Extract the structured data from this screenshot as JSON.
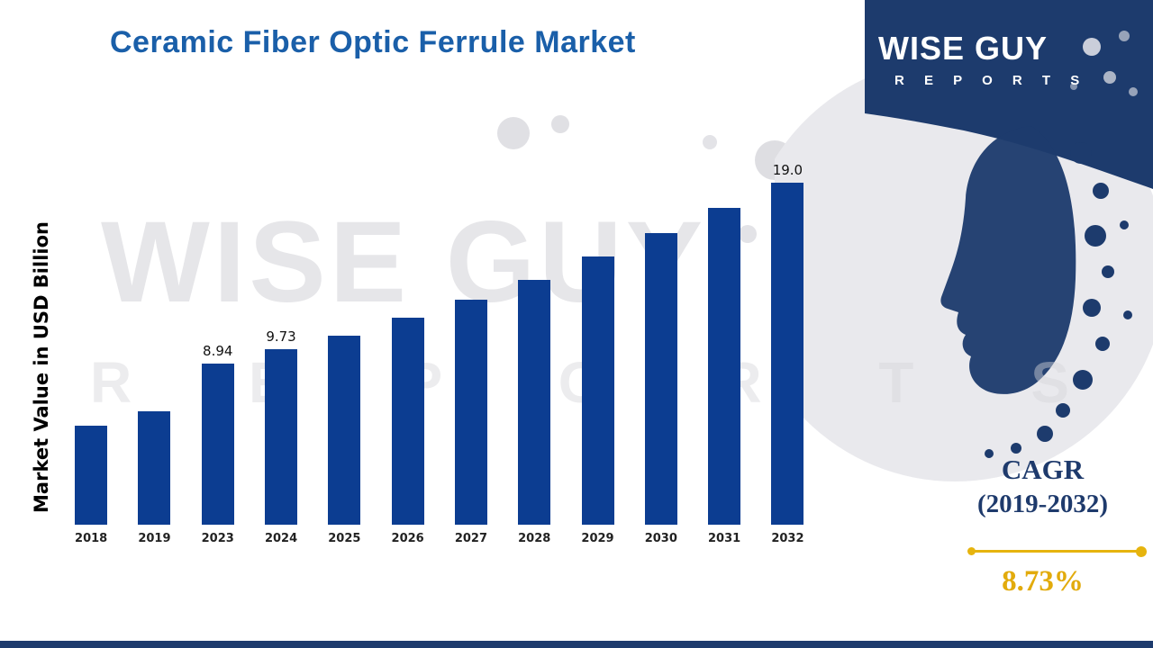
{
  "page": {
    "title": "Ceramic Fiber Optic Ferrule Market"
  },
  "logo": {
    "name_top": "WISE GUY",
    "name_bottom": "R E P O R T S"
  },
  "watermark": {
    "top": "WISE GUY",
    "bottom": "R E P O R T S"
  },
  "cagr": {
    "heading": "CAGR",
    "range": "(2019-2032)",
    "value": "8.73%"
  },
  "chart_data": {
    "type": "bar",
    "title": "Ceramic Fiber Optic Ferrule Market",
    "ylabel": "Market Value in USD Billion",
    "xlabel": "",
    "categories": [
      "2018",
      "2019",
      "2023",
      "2024",
      "2025",
      "2026",
      "2027",
      "2028",
      "2029",
      "2030",
      "2031",
      "2032"
    ],
    "values": [
      5.5,
      6.3,
      8.94,
      9.73,
      10.5,
      11.5,
      12.5,
      13.6,
      14.9,
      16.2,
      17.6,
      19.0
    ],
    "data_labels": [
      null,
      null,
      "8.94",
      "9.73",
      null,
      null,
      null,
      null,
      null,
      null,
      null,
      "19.0"
    ],
    "ylim": [
      0,
      21
    ],
    "grid": false,
    "legend": false,
    "bar_color": "#0c3d91"
  },
  "colors": {
    "title_blue": "#1a5fa9",
    "navy": "#1d3b6d",
    "gold": "#e6b40e",
    "bar_blue": "#0c3d91",
    "circle_gray": "#e9e9ed"
  }
}
